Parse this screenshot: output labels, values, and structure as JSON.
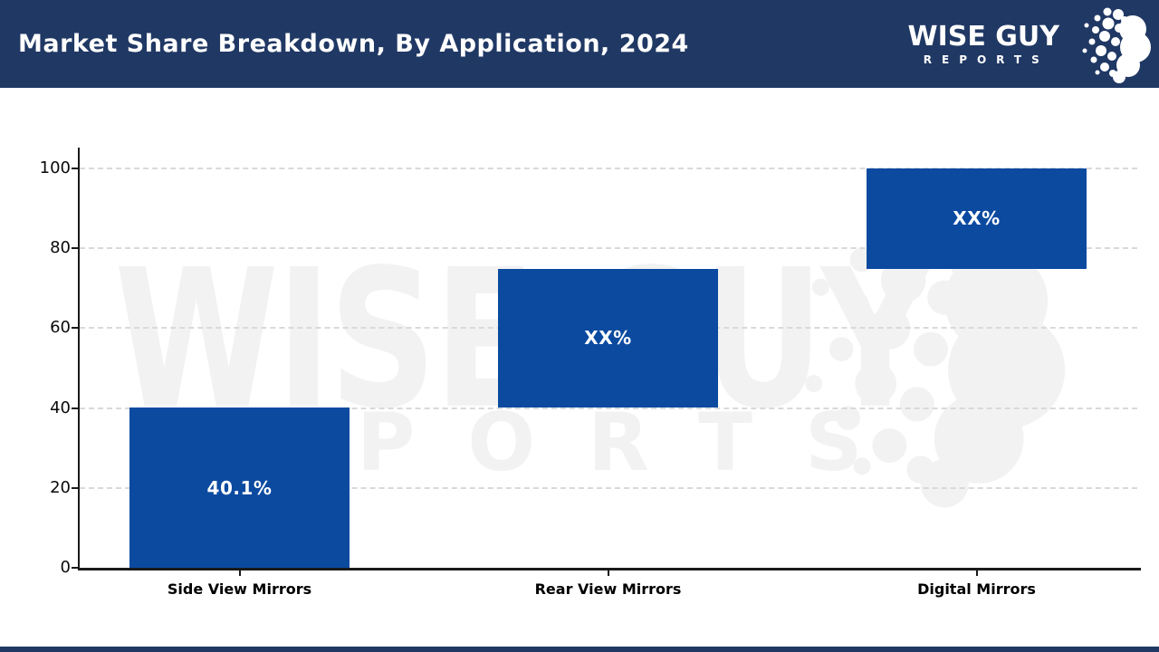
{
  "header": {
    "title": "Market Share Breakdown, By Application, 2024",
    "bg_color": "#203864",
    "logo": {
      "line1": "WISE GUY",
      "line2": "REPORTS",
      "face_icon": "dotted-head-profile"
    }
  },
  "watermark": {
    "wiseguy": "WISE GUY",
    "reports": "REPORTS",
    "color": "#f2f2f2"
  },
  "chart_data": {
    "type": "bar",
    "subtype": "floating-segment-steps",
    "title": "Market Share Breakdown, By Application, 2024",
    "xlabel": "",
    "ylabel": "",
    "categories": [
      "Side View Mirrors",
      "Rear View Mirrors",
      "Digital Mirrors"
    ],
    "bars": [
      {
        "category": "Side View Mirrors",
        "start": 0,
        "end": 40.1,
        "label": "40.1%"
      },
      {
        "category": "Rear View Mirrors",
        "start": 40.1,
        "end": 74.9,
        "label": "XX%"
      },
      {
        "category": "Digital Mirrors",
        "start": 74.9,
        "end": 100,
        "label": "XX%"
      }
    ],
    "ylim": [
      0,
      100
    ],
    "yticks": [
      0,
      20,
      40,
      60,
      80,
      100
    ],
    "grid": "horizontal-dashed",
    "legend": "none",
    "bar_color": "#0c4aa0",
    "bar_label_color": "#ffffff",
    "grid_color": "#d9d9d9",
    "axis_color": "#1a1a1a"
  }
}
